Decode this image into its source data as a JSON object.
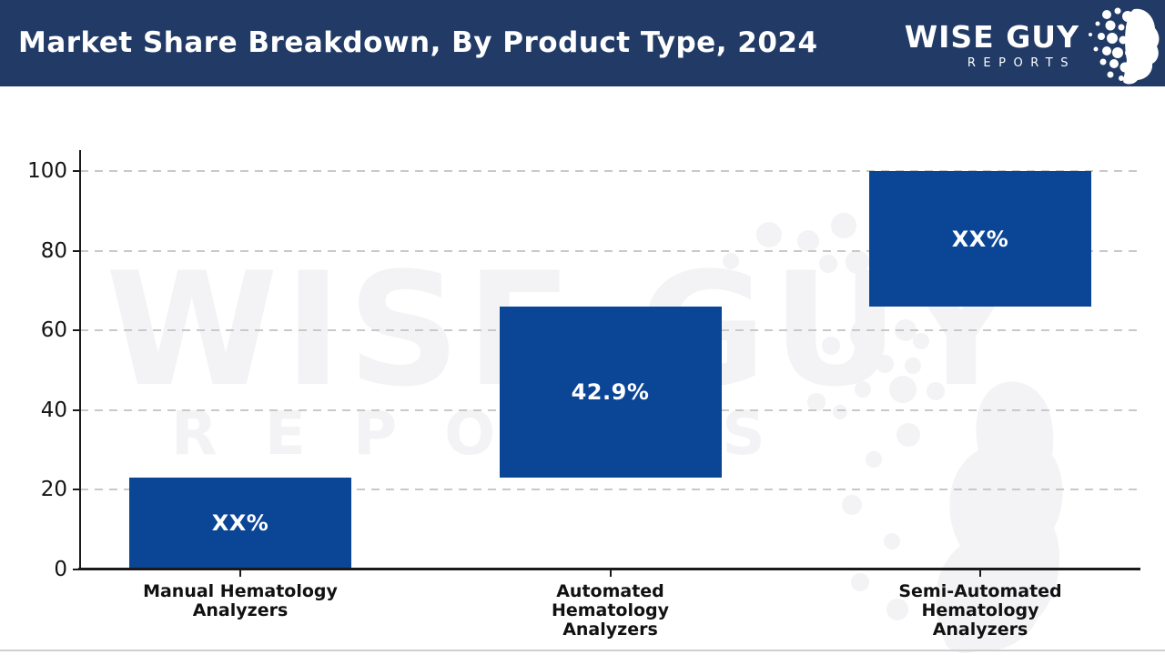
{
  "header": {
    "title": "Market Share Breakdown, By Product Type, 2024"
  },
  "brand": {
    "name": "WISE GUY",
    "tagline": "REPORTS"
  },
  "watermark": {
    "line1": "WISE GUY",
    "line2": "REPORTS"
  },
  "colors": {
    "header_bg": "#213a66",
    "bar_blue": "#0b4596",
    "grid_gray": "#c9c9c9",
    "watermark_gray": "#f3f3f5"
  },
  "chart_data": {
    "type": "bar",
    "subtype": "waterfall-segments",
    "title": "Market Share Breakdown, By Product Type, 2024",
    "xlabel": "",
    "ylabel": "",
    "ylim": [
      0,
      100
    ],
    "yticks": [
      0,
      20,
      40,
      60,
      80,
      100
    ],
    "grid": "horizontal-dashed",
    "legend": "none",
    "bar_color": "#0b4596",
    "categories": [
      [
        "Manual Hematology",
        "Analyzers"
      ],
      [
        "Automated",
        "Hematology",
        "Analyzers"
      ],
      [
        "Semi-Automated",
        "Hematology",
        "Analyzers"
      ]
    ],
    "bars": [
      {
        "category": "Manual Hematology Analyzers",
        "label": "XX%",
        "start": 0,
        "end": 23
      },
      {
        "category": "Automated Hematology Analyzers",
        "label": "42.9%",
        "start": 23,
        "end": 65.9
      },
      {
        "category": "Semi-Automated Hematology Analyzers",
        "label": "XX%",
        "start": 65.9,
        "end": 100
      }
    ]
  }
}
